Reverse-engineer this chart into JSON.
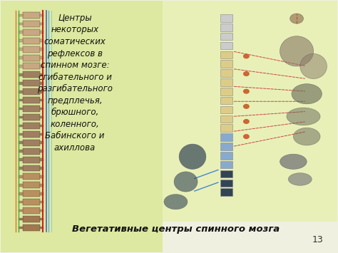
{
  "slide_bg": "#f0f0e0",
  "text_left_title": "Центры\nнекоторых\nсоматических\nрефлексов в\nспинном мозге:\nсгибательного и\nразгибательного\nпредплечья,\nбрюшного,\nколенного,\nБабинского и\nахиллова",
  "text_bottom": "Вегетативные центры спинного мозга",
  "page_number": "13",
  "font_size_main": 8.5,
  "font_size_bottom": 9.5,
  "font_size_page": 9,
  "left_panel_color": "#dde8a0",
  "right_panel_color": "#e8f0b8",
  "figsize": [
    4.74,
    3.55
  ],
  "dpi": 100
}
